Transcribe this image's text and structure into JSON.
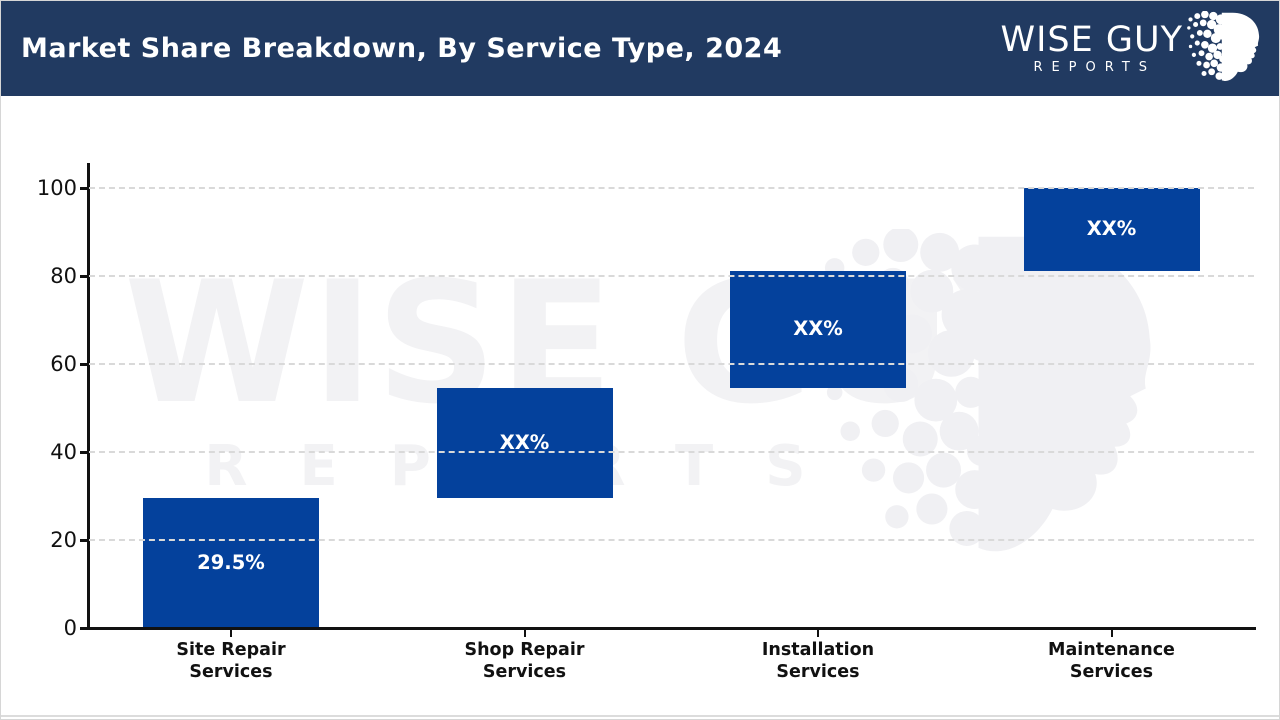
{
  "header": {
    "title": "Market Share Breakdown, By Service Type, 2024",
    "brand": {
      "line1": "WISE GUY",
      "line2": "REPORTS"
    }
  },
  "watermark": {
    "line1": "WISE GUY",
    "line2": "REPORTS"
  },
  "colors": {
    "header_bg": "#213a61",
    "bar": "#04419c",
    "grid": "#d9d9d9",
    "axis": "#111111",
    "bar_label": "#ffffff",
    "watermark": "#f2f2f4"
  },
  "chart_data": {
    "type": "bar",
    "subtype": "waterfall",
    "title": "Market Share Breakdown, By Service Type, 2024",
    "categories": [
      "Site Repair\nServices",
      "Shop Repair\nServices",
      "Installation\nServices",
      "Maintenance\nServices"
    ],
    "segments": [
      {
        "category": "Site Repair Services",
        "start": 0,
        "end": 29.5,
        "label": "29.5%"
      },
      {
        "category": "Shop Repair Services",
        "start": 29.5,
        "end": 54.6,
        "label": "XX%"
      },
      {
        "category": "Installation Services",
        "start": 54.6,
        "end": 81.2,
        "label": "XX%"
      },
      {
        "category": "Maintenance Services",
        "start": 81.2,
        "end": 100,
        "label": "XX%"
      }
    ],
    "yticks": [
      0,
      20,
      40,
      60,
      80,
      100
    ],
    "ylim": [
      0,
      100
    ],
    "xlabel": "",
    "ylabel": "",
    "grid": "horizontal-dashed",
    "legend": "none",
    "bar_color": "#04419c"
  }
}
